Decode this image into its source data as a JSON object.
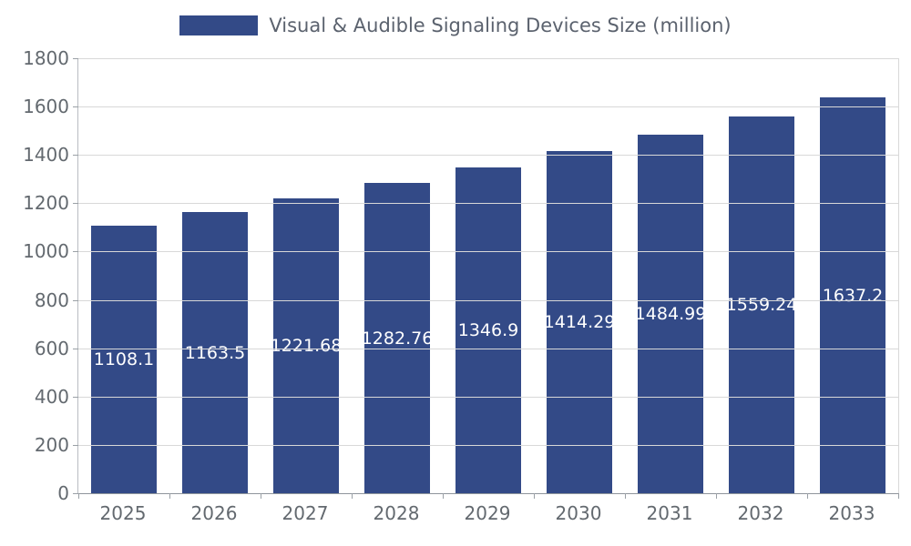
{
  "colors": {
    "bar": "#334a87",
    "axis_text": "#63696f",
    "legend_text": "#5b626e",
    "grid": "#d8d8d8",
    "bar_label_text": "#ffffff"
  },
  "chart_data": {
    "type": "bar",
    "title": "Visual & Audible Signaling Devices Size (million)",
    "legend_position": "top",
    "categories": [
      "2025",
      "2026",
      "2027",
      "2028",
      "2029",
      "2030",
      "2031",
      "2032",
      "2033"
    ],
    "values": [
      1108.1,
      1163.5,
      1221.68,
      1282.76,
      1346.9,
      1414.29,
      1484.99,
      1559.24,
      1637.2
    ],
    "labels": [
      "1108.1",
      "1163.5",
      "1221.68",
      "1282.76",
      "1346.9",
      "1414.29",
      "1484.99",
      "1559.24",
      "1637.2"
    ],
    "xlabel": "",
    "ylabel": "",
    "ylim": [
      0,
      1800
    ],
    "yticks": [
      0,
      200,
      400,
      600,
      800,
      1000,
      1200,
      1400,
      1600,
      1800
    ],
    "grid": true
  }
}
